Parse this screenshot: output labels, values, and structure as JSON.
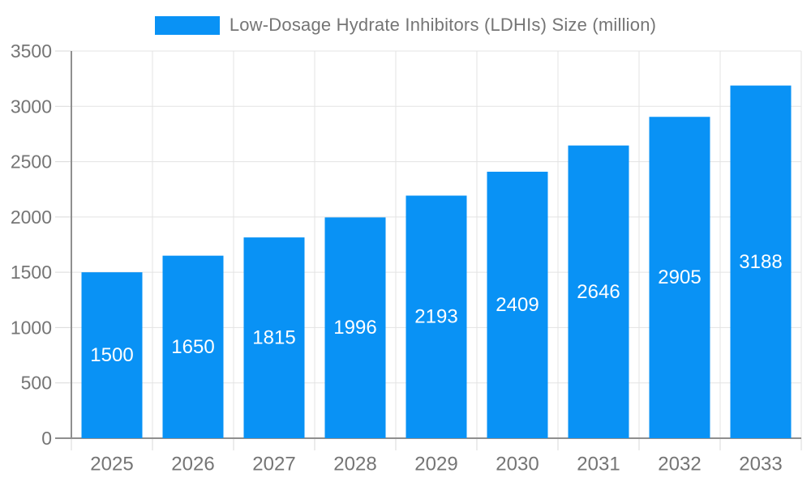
{
  "legend": {
    "label": "Low-Dosage Hydrate Inhibitors (LDHIs) Size (million)",
    "swatch_color": "#0992f5"
  },
  "chart_data": {
    "type": "bar",
    "title": "",
    "xlabel": "",
    "ylabel": "",
    "categories": [
      "2025",
      "2026",
      "2027",
      "2028",
      "2029",
      "2030",
      "2031",
      "2032",
      "2033"
    ],
    "series": [
      {
        "name": "Low-Dosage Hydrate Inhibitors (LDHIs) Size (million)",
        "values": [
          1500,
          1650,
          1815,
          1996,
          2193,
          2409,
          2646,
          2905,
          3188
        ]
      }
    ],
    "value_labels_shown": true,
    "ylim": [
      0,
      3500
    ],
    "yticks": [
      0,
      500,
      1000,
      1500,
      2000,
      2500,
      3000,
      3500
    ],
    "grid": true,
    "legend_position": "top-center",
    "colors": {
      "bar": "#0992f5",
      "value_label": "#ffffff",
      "axis_text": "#757575",
      "grid_line": "#e3e3e3",
      "tick_line": "#d9d9d9",
      "axis_line": "#8f8f8f"
    }
  }
}
